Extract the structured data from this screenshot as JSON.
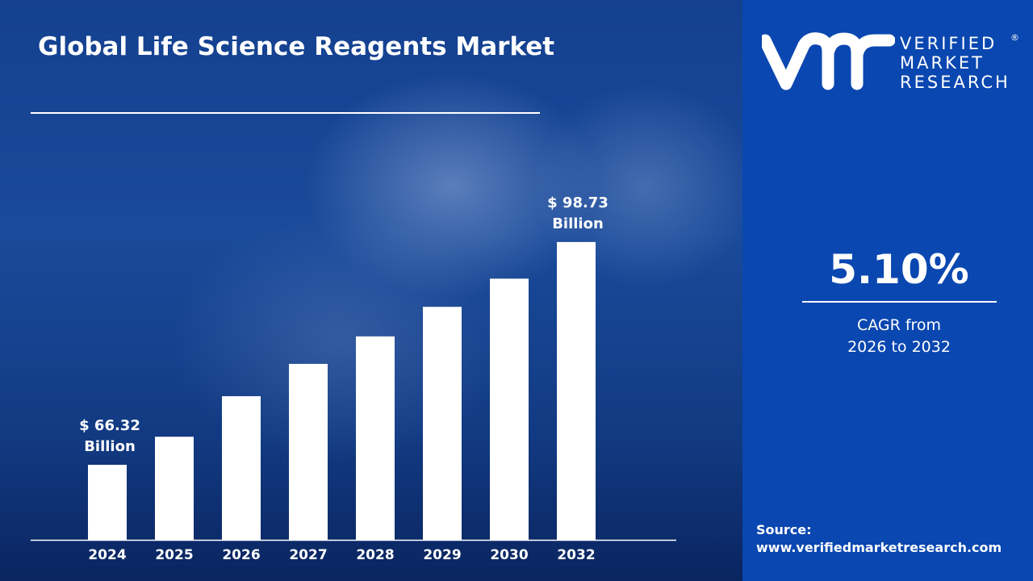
{
  "title": "Global Life Science Reagents Market",
  "brand": {
    "line1": "VERIFIED",
    "line2": "MARKET",
    "line3": "RESEARCH",
    "registered": "®",
    "logo_text": "vmr"
  },
  "cagr": {
    "value": "5.10%",
    "line1": "CAGR from",
    "line2": "2026 to 2032"
  },
  "source": {
    "label": "Source:",
    "url": "www.verifiedmarketresearch.com"
  },
  "colors": {
    "panel": "#0a47b0",
    "bars": "#ffffff",
    "background": "#14408f"
  },
  "chart_data": {
    "type": "bar",
    "title": "Global Life Science Reagents Market",
    "categories": [
      "2024",
      "2025",
      "2026",
      "2027",
      "2028",
      "2029",
      "2030",
      "2032"
    ],
    "values": [
      66.32,
      70.4,
      76.3,
      81.0,
      85.0,
      89.3,
      93.4,
      98.73
    ],
    "unit": "USD Billion",
    "annotations": [
      {
        "category": "2024",
        "line1": "$ 66.32",
        "line2": "Billion"
      },
      {
        "category": "2032",
        "line1": "$  98.73",
        "line2": "Billion"
      }
    ],
    "grid": false,
    "yaxis_visible": false
  }
}
